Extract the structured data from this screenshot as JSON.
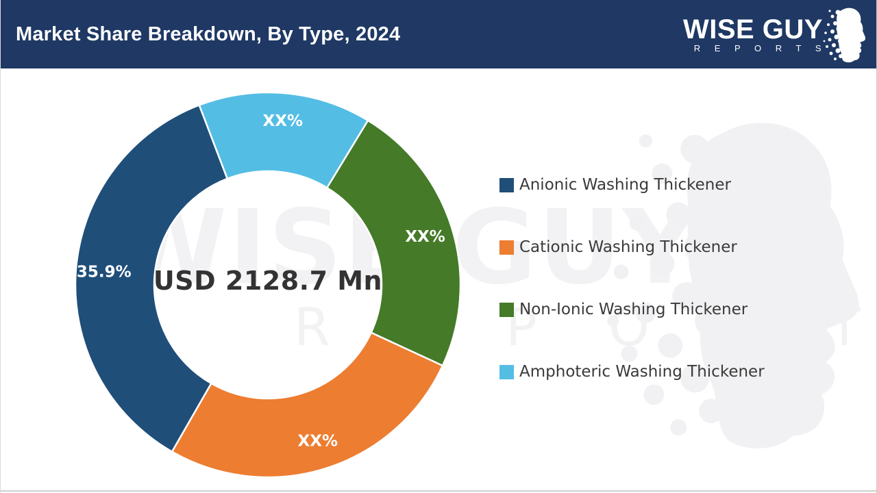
{
  "header": {
    "title": "Market Share Breakdown, By Type, 2024"
  },
  "brand": {
    "name": "WISE GUY",
    "tagline": "R E P O R T S"
  },
  "watermark": {
    "line1": "WISE GUY",
    "line2": "R E P O R T S"
  },
  "chart_data": {
    "type": "donut",
    "title": "Market Share Breakdown, By Type, 2024",
    "center_label": "USD 2128.7 Mn",
    "start_angle_deg": 110.9,
    "direction": "counterclockwise",
    "legend_position": "right",
    "categories": [
      "Anionic Washing Thickener",
      "Cationic Washing Thickener",
      "Non-Ionic Washing Thickener",
      "Amphoteric Washing Thickener"
    ],
    "series": [
      {
        "name": "Market Share %",
        "values": [
          35.9,
          26.4,
          23.2,
          14.5
        ]
      }
    ],
    "segments": [
      {
        "label": "Anionic Washing Thickener",
        "value_pct": 35.9,
        "display_label": "35.9%",
        "color": "#1F4E79"
      },
      {
        "label": "Cationic Washing Thickener",
        "value_pct": 26.4,
        "display_label": "XX%",
        "color": "#ED7D31"
      },
      {
        "label": "Non-Ionic Washing Thickener",
        "value_pct": 23.2,
        "display_label": "XX%",
        "color": "#447A28"
      },
      {
        "label": "Amphoteric Washing Thickener",
        "value_pct": 14.5,
        "display_label": "XX%",
        "color": "#54BDE4"
      }
    ]
  },
  "colors": {
    "header_bg": "#1F3864",
    "center_text": "#333333",
    "legend_text": "#3A3A3A",
    "watermark": "#F2F2F4"
  }
}
